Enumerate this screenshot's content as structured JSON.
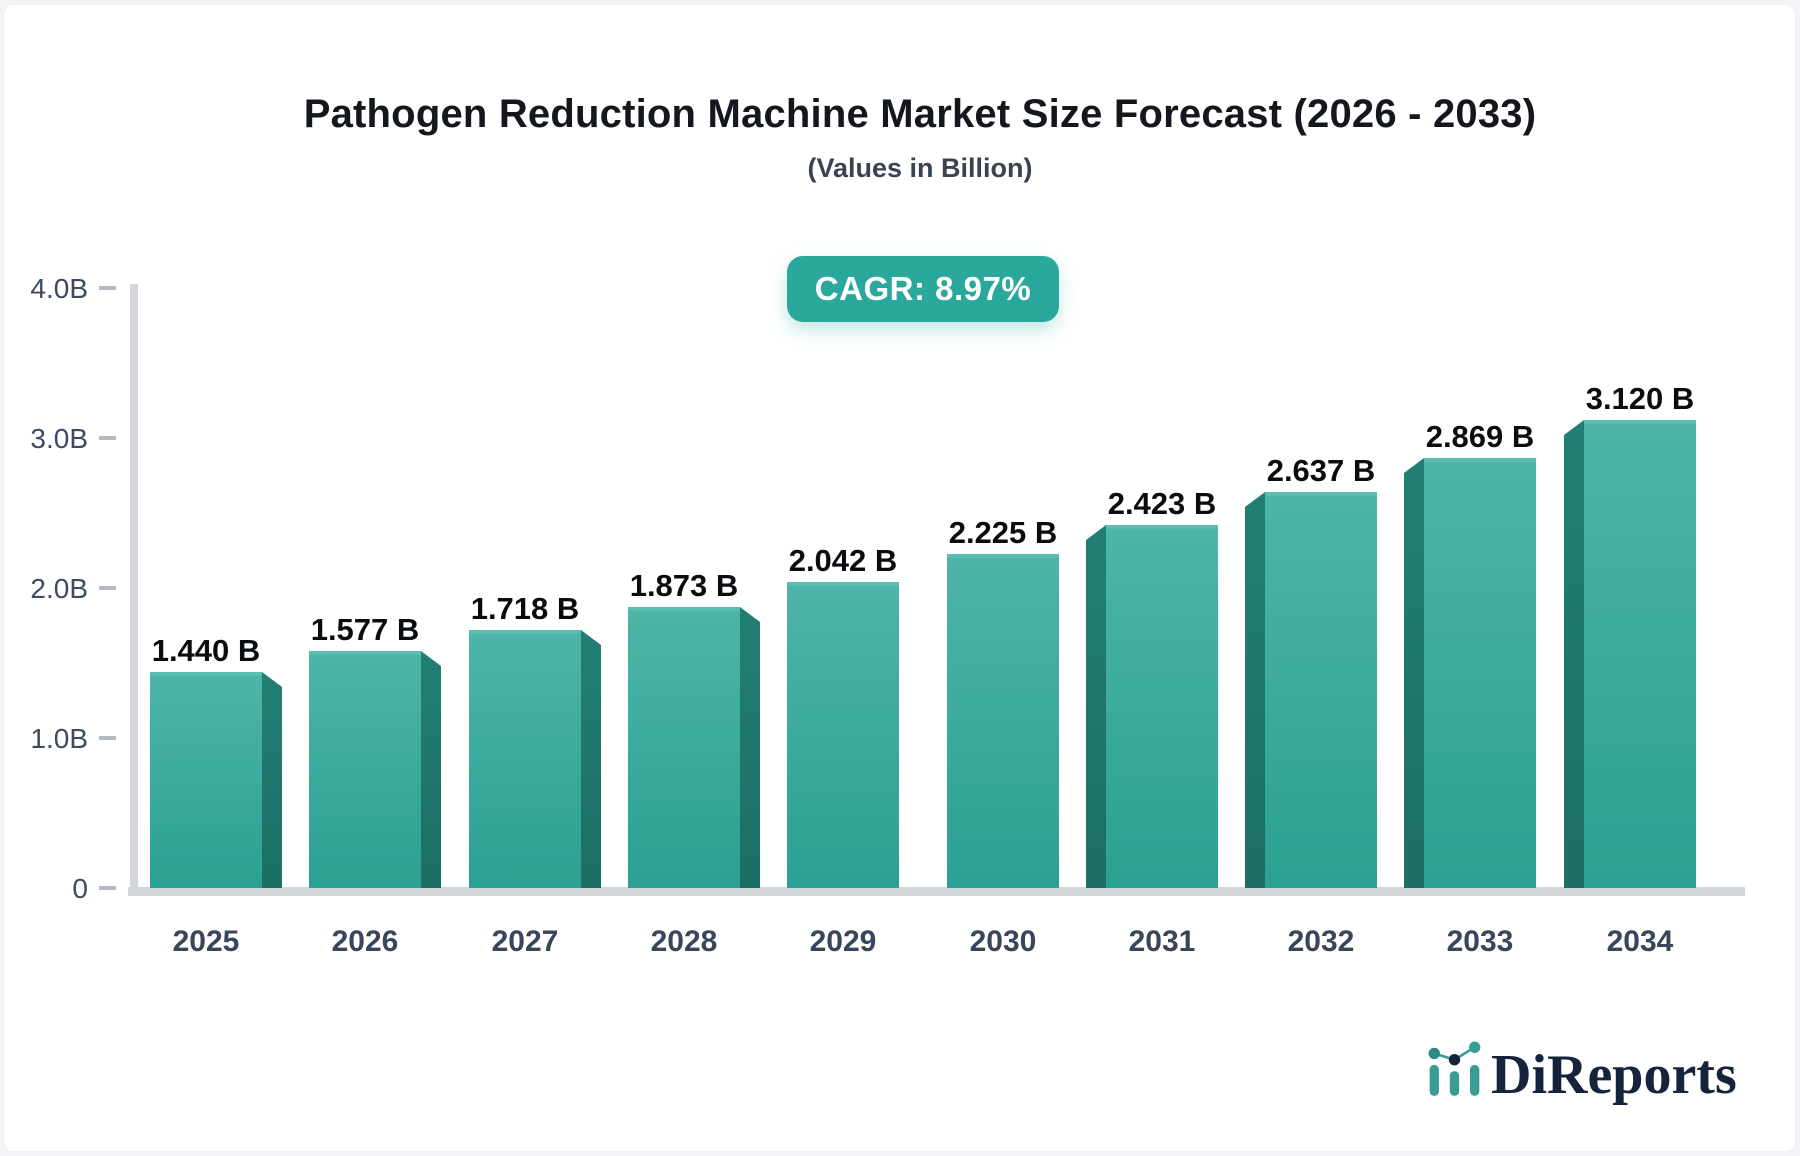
{
  "title": "Pathogen Reduction Machine Market Size Forecast (2026 - 2033)",
  "subtitle": "(Values in Billion)",
  "badge": {
    "label": "CAGR: 8.97%",
    "color": "#2aa89b"
  },
  "logo": {
    "text": "DiReports",
    "icon": "mini-bar-chart-icon",
    "navy": "#16233c",
    "teal": "#3a9d95"
  },
  "chart_data": {
    "type": "bar",
    "title": "Pathogen Reduction Machine Market Size Forecast (2026 - 2033)",
    "subtitle": "(Values in Billion)",
    "categories": [
      "2025",
      "2026",
      "2027",
      "2028",
      "2029",
      "2030",
      "2031",
      "2032",
      "2033",
      "2034"
    ],
    "values": [
      1.44,
      1.577,
      1.718,
      1.873,
      2.042,
      2.225,
      2.423,
      2.637,
      2.869,
      3.12
    ],
    "value_labels": [
      "1.440 B",
      "1.577 B",
      "1.718 B",
      "1.873 B",
      "2.042 B",
      "2.225 B",
      "2.423 B",
      "2.637 B",
      "2.869 B",
      "3.120 B"
    ],
    "unit": "B",
    "cagr": "8.97%",
    "ylim": [
      0,
      4
    ],
    "y_ticks": [
      {
        "value": 0,
        "label": "0"
      },
      {
        "value": 1,
        "label": "1.0B"
      },
      {
        "value": 2,
        "label": "2.0B"
      },
      {
        "value": 3,
        "label": "3.0B"
      },
      {
        "value": 4,
        "label": "4.0B"
      }
    ],
    "grid": false,
    "legend": "none",
    "style_3d": "center-vanishing-point",
    "colors": {
      "bar_face_top": "#4eb5a8",
      "bar_face_bottom": "#2aa093",
      "bar_top_cap": "#5abfb0",
      "bar_side_top": "#227f74",
      "bar_side_bottom": "#1c6f65",
      "axis_line": "#d3d6db",
      "tick_dash": "#b4bac4",
      "tick_label": "#3e4a63",
      "category_label": "#39455a",
      "value_label": "#0a0d10"
    }
  }
}
